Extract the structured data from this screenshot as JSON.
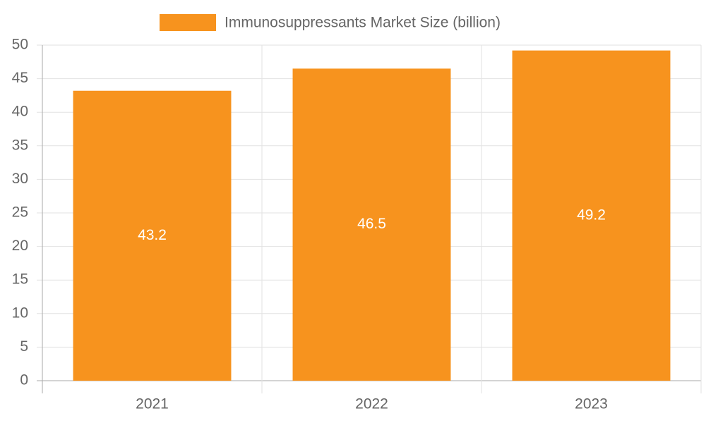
{
  "chart_data": {
    "type": "bar",
    "categories": [
      "2021",
      "2022",
      "2023"
    ],
    "series": [
      {
        "name": "Immunosuppressants Market Size (billion)",
        "color": "#f7931e",
        "values": [
          43.2,
          46.5,
          49.2
        ]
      }
    ],
    "ylim": [
      0,
      50
    ],
    "yticks": [
      0,
      5,
      10,
      15,
      20,
      25,
      30,
      35,
      40,
      45,
      50
    ],
    "grid": true,
    "legend": "top",
    "value_label_color": "#ffffff"
  }
}
